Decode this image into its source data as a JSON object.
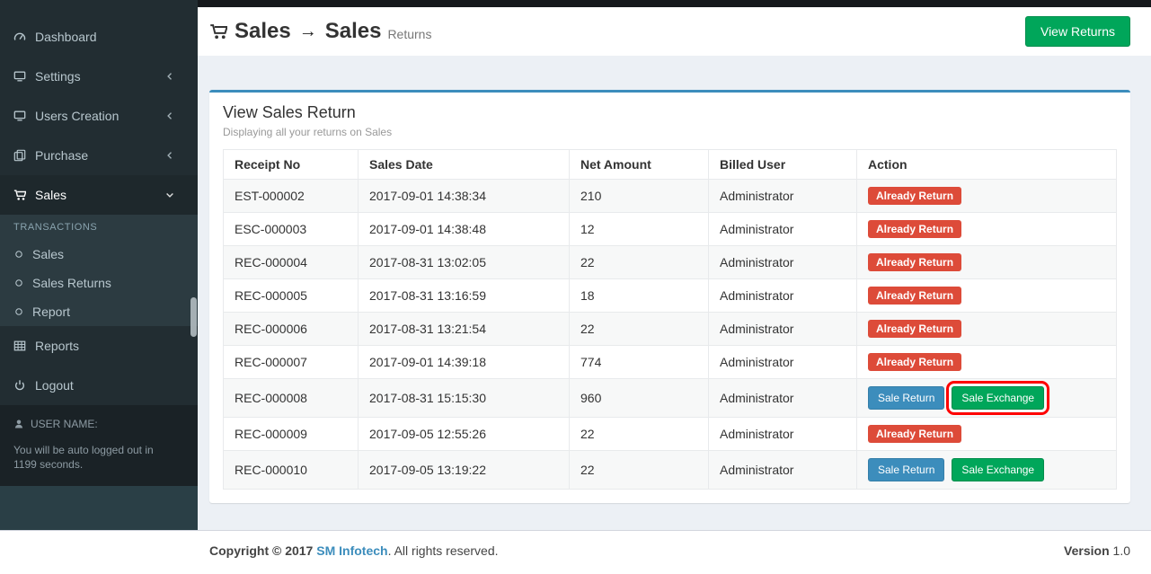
{
  "app": {
    "breadcrumb": {
      "section": "Sales",
      "separator": "→",
      "page": "Sales",
      "page_sub": "Returns"
    },
    "view_returns_button": "View Returns"
  },
  "sidebar": {
    "items": [
      {
        "label": "Dashboard",
        "icon": "dashboard-icon"
      },
      {
        "label": "Settings",
        "icon": "monitor-icon",
        "chevron": "left"
      },
      {
        "label": "Users Creation",
        "icon": "monitor-icon",
        "chevron": "left"
      },
      {
        "label": "Purchase",
        "icon": "copy-icon",
        "chevron": "left"
      },
      {
        "label": "Sales",
        "icon": "cart-icon",
        "chevron": "down",
        "active": true
      }
    ],
    "submenu_header": "TRANSACTIONS",
    "submenu": [
      {
        "label": "Sales",
        "icon": "circle-icon"
      },
      {
        "label": "Sales Returns",
        "icon": "circle-icon"
      },
      {
        "label": "Report",
        "icon": "circle-icon"
      }
    ],
    "items_bottom": [
      {
        "label": "Reports",
        "icon": "table-icon"
      },
      {
        "label": "Logout",
        "icon": "power-icon"
      }
    ],
    "user_label": "USER NAME:",
    "logout_notice": "You will be auto logged out in 1199 seconds."
  },
  "panel": {
    "title": "View Sales Return",
    "subtitle": "Displaying all your returns on Sales"
  },
  "table": {
    "headers": [
      "Receipt No",
      "Sales Date",
      "Net Amount",
      "Billed User",
      "Action"
    ],
    "rows": [
      {
        "receipt": "EST-000002",
        "date": "2017-09-01 14:38:34",
        "amount": "210",
        "user": "Administrator",
        "actions": [
          {
            "type": "badge",
            "label": "Already Return"
          }
        ]
      },
      {
        "receipt": "ESC-000003",
        "date": "2017-09-01 14:38:48",
        "amount": "12",
        "user": "Administrator",
        "actions": [
          {
            "type": "badge",
            "label": "Already Return"
          }
        ]
      },
      {
        "receipt": "REC-000004",
        "date": "2017-08-31 13:02:05",
        "amount": "22",
        "user": "Administrator",
        "actions": [
          {
            "type": "badge",
            "label": "Already Return"
          }
        ]
      },
      {
        "receipt": "REC-000005",
        "date": "2017-08-31 13:16:59",
        "amount": "18",
        "user": "Administrator",
        "actions": [
          {
            "type": "badge",
            "label": "Already Return"
          }
        ]
      },
      {
        "receipt": "REC-000006",
        "date": "2017-08-31 13:21:54",
        "amount": "22",
        "user": "Administrator",
        "actions": [
          {
            "type": "badge",
            "label": "Already Return"
          }
        ]
      },
      {
        "receipt": "REC-000007",
        "date": "2017-09-01 14:39:18",
        "amount": "774",
        "user": "Administrator",
        "actions": [
          {
            "type": "badge",
            "label": "Already Return"
          }
        ]
      },
      {
        "receipt": "REC-000008",
        "date": "2017-08-31 15:15:30",
        "amount": "960",
        "user": "Administrator",
        "actions": [
          {
            "type": "sale-return",
            "label": "Sale Return"
          },
          {
            "type": "sale-exchange",
            "label": "Sale Exchange",
            "highlighted": true
          }
        ]
      },
      {
        "receipt": "REC-000009",
        "date": "2017-09-05 12:55:26",
        "amount": "22",
        "user": "Administrator",
        "actions": [
          {
            "type": "badge",
            "label": "Already Return"
          }
        ]
      },
      {
        "receipt": "REC-000010",
        "date": "2017-09-05 13:19:22",
        "amount": "22",
        "user": "Administrator",
        "actions": [
          {
            "type": "sale-return",
            "label": "Sale Return"
          },
          {
            "type": "sale-exchange",
            "label": "Sale Exchange"
          }
        ]
      }
    ]
  },
  "footer": {
    "copyright_prefix": "Copyright © 2017 ",
    "company": "SM Infotech",
    "copyright_suffix": ". All rights reserved.",
    "version_label": "Version",
    "version_value": "1.0"
  },
  "colors": {
    "accent_blue": "#3c8dbc",
    "green": "#00a65a",
    "red_badge": "#dd4b39",
    "annotation_red": "#fe0000",
    "sidebar_bg": "#222d32"
  }
}
